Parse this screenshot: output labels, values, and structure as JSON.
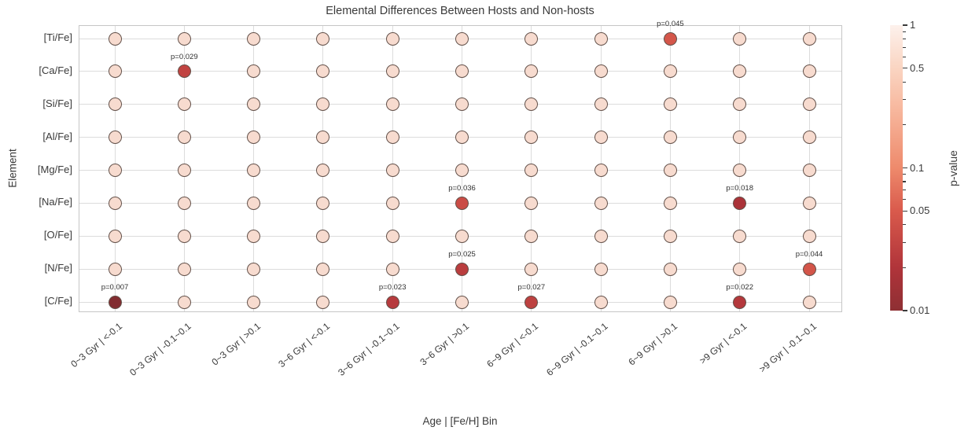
{
  "page": {
    "title": "Elemental Differences Between Hosts and Non-hosts"
  },
  "chart_data": {
    "type": "scatter",
    "title": "Elemental Differences Between Hosts and Non-hosts",
    "xlabel": "Age | [Fe/H] Bin",
    "ylabel": "Element",
    "grid": true,
    "x_categories": [
      "0~3 Gyr | <-0.1",
      "0~3 Gyr | -0.1~0.1",
      "0~3 Gyr | >0.1",
      "3~6 Gyr | <-0.1",
      "3~6 Gyr | -0.1~0.1",
      "3~6 Gyr | >0.1",
      "6~9 Gyr | <-0.1",
      "6~9 Gyr | -0.1~0.1",
      "6~9 Gyr | >0.1",
      ">9 Gyr | <-0.1",
      ">9 Gyr | -0.1~0.1"
    ],
    "y_categories": [
      "[Ti/Fe]",
      "[Ca/Fe]",
      "[Si/Fe]",
      "[Al/Fe]",
      "[Mg/Fe]",
      "[Na/Fe]",
      "[O/Fe]",
      "[N/Fe]",
      "[C/Fe]"
    ],
    "significant_points": [
      {
        "element": "[Ti/Fe]",
        "bin": "6~9 Gyr | >0.1",
        "p": 0.045,
        "label": "p=0.045"
      },
      {
        "element": "[Ca/Fe]",
        "bin": "0~3 Gyr | -0.1~0.1",
        "p": 0.029,
        "label": "p=0.029"
      },
      {
        "element": "[Na/Fe]",
        "bin": "3~6 Gyr | >0.1",
        "p": 0.036,
        "label": "p=0.036"
      },
      {
        "element": "[Na/Fe]",
        "bin": ">9 Gyr | <-0.1",
        "p": 0.018,
        "label": "p=0.018"
      },
      {
        "element": "[N/Fe]",
        "bin": "3~6 Gyr | >0.1",
        "p": 0.025,
        "label": "p=0.025"
      },
      {
        "element": "[N/Fe]",
        "bin": ">9 Gyr | -0.1~0.1",
        "p": 0.044,
        "label": "p=0.044"
      },
      {
        "element": "[C/Fe]",
        "bin": "0~3 Gyr | <-0.1",
        "p": 0.007,
        "label": "p=0.007"
      },
      {
        "element": "[C/Fe]",
        "bin": "3~6 Gyr | -0.1~0.1",
        "p": 0.023,
        "label": "p=0.023"
      },
      {
        "element": "[C/Fe]",
        "bin": "6~9 Gyr | <-0.1",
        "p": 0.027,
        "label": "p=0.027"
      },
      {
        "element": "[C/Fe]",
        "bin": ">9 Gyr | <-0.1",
        "p": 0.022,
        "label": "p=0.022"
      }
    ],
    "nonsignificant_points": "all remaining element/bin combinations are drawn as light (high p-value) markers without labels",
    "colorbar": {
      "label": "p-value",
      "scale": "log",
      "min": 0.01,
      "max": 1,
      "major_ticks": [
        {
          "value": 1,
          "label": "1"
        },
        {
          "value": 0.5,
          "label": "0.5"
        },
        {
          "value": 0.1,
          "label": "0.1"
        },
        {
          "value": 0.05,
          "label": "0.05"
        },
        {
          "value": 0.01,
          "label": "0.01"
        }
      ],
      "minor_ticks": [
        0.9,
        0.8,
        0.7,
        0.6,
        0.4,
        0.3,
        0.2,
        0.09,
        0.08,
        0.07,
        0.06,
        0.04,
        0.03,
        0.02
      ]
    }
  },
  "colors": {
    "background": "#ffffff",
    "axis_frame": "#c6c6c6",
    "gridline": "#dcdcdc",
    "marker_nonsignificant_fill": "#f7dbcf",
    "marker_edge": "#63514a",
    "text": "#3a3a3a",
    "annotation_text": "#2f2f2f",
    "pvalue_ramp": [
      {
        "t": 0,
        "hex": "#fdf1ec"
      },
      {
        "t": 0.1505,
        "hex": "#fad5c2"
      },
      {
        "t": 0.301,
        "hex": "#f7b69c"
      },
      {
        "t": 0.5,
        "hex": "#ee8a6c"
      },
      {
        "t": 0.6505,
        "hex": "#d95a4c"
      },
      {
        "t": 0.85,
        "hex": "#b0343a"
      },
      {
        "t": 1,
        "hex": "#8e2f33"
      },
      {
        "t": 1.25,
        "hex": "#672429"
      }
    ]
  }
}
